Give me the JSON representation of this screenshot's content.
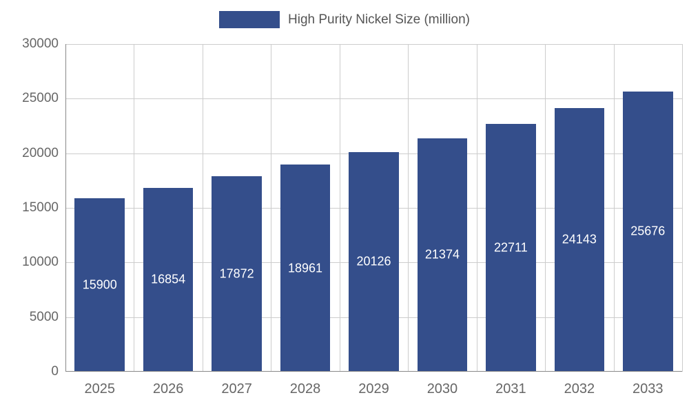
{
  "chart_data": {
    "type": "bar",
    "title": "High Purity Nickel Size (million)",
    "categories": [
      "2025",
      "2026",
      "2027",
      "2028",
      "2029",
      "2030",
      "2031",
      "2032",
      "2033"
    ],
    "values": [
      15900,
      16854,
      17872,
      18961,
      20126,
      21374,
      22711,
      24143,
      25676
    ],
    "xlabel": "",
    "ylabel": "",
    "ylim": [
      0,
      30000
    ],
    "yticks": [
      0,
      5000,
      10000,
      15000,
      20000,
      25000,
      30000
    ],
    "grid": true,
    "legend_position": "top-center",
    "value_labels": "inside-center-white",
    "colors": {
      "bar": "#344E8B",
      "grid": "#cccccc",
      "axis": "#888888",
      "tick_label": "#666666",
      "legend_text": "#555555",
      "value_label": "#ffffff",
      "background": "#ffffff"
    }
  }
}
